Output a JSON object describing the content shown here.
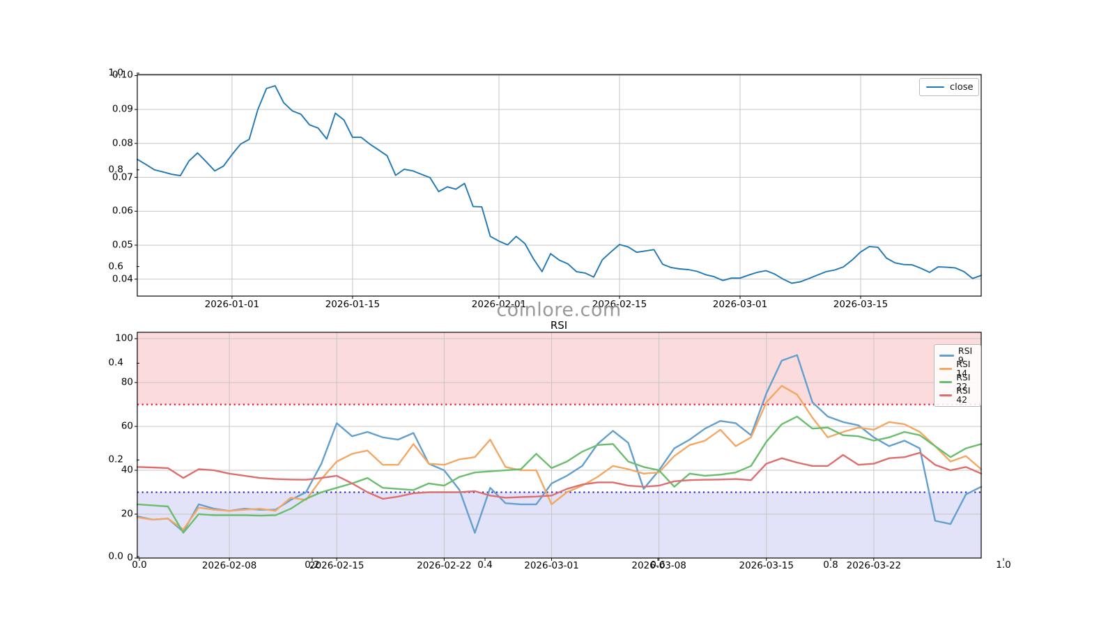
{
  "watermark": "coinlore.com",
  "hidden_axis": {
    "x_labels": [
      "0.0",
      "0.2",
      "0.4",
      "0.6",
      "0.8",
      "1.0"
    ],
    "y_labels": [
      "1.0",
      "0.8",
      "0.6",
      "0.4",
      "0.2",
      "0.0"
    ]
  },
  "chart_data": [
    {
      "type": "line",
      "name": "price-chart",
      "title": "",
      "legend_position": "upper right",
      "grid": true,
      "x_start": "2025-12-21",
      "x_ticks": [
        {
          "label": "2026-01-01",
          "i": 11
        },
        {
          "label": "2026-01-15",
          "i": 25
        },
        {
          "label": "2026-02-01",
          "i": 42
        },
        {
          "label": "2026-02-15",
          "i": 56
        },
        {
          "label": "2026-03-01",
          "i": 70
        },
        {
          "label": "2026-03-15",
          "i": 84
        }
      ],
      "y_ticks": [
        {
          "label": "0.04",
          "v": 0.04
        },
        {
          "label": "0.05",
          "v": 0.05
        },
        {
          "label": "0.06",
          "v": 0.06
        },
        {
          "label": "0.07",
          "v": 0.07
        },
        {
          "label": "0.08",
          "v": 0.08
        },
        {
          "label": "0.09",
          "v": 0.09
        },
        {
          "label": "0.10",
          "v": 0.1
        }
      ],
      "ylim": [
        0.035,
        0.1003
      ],
      "series": [
        {
          "name": "close",
          "color": "#1f77b4",
          "values": [
            0.0753,
            0.0738,
            0.0722,
            0.0716,
            0.0709,
            0.0705,
            0.0748,
            0.0772,
            0.0746,
            0.0719,
            0.0733,
            0.0767,
            0.0798,
            0.0812,
            0.09,
            0.0962,
            0.097,
            0.092,
            0.0896,
            0.0886,
            0.0855,
            0.0845,
            0.0813,
            0.0889,
            0.0869,
            0.0818,
            0.0818,
            0.0798,
            0.0781,
            0.0764,
            0.0706,
            0.0724,
            0.0719,
            0.0709,
            0.0699,
            0.0658,
            0.0672,
            0.0665,
            0.0682,
            0.0614,
            0.0613,
            0.0526,
            0.0512,
            0.0501,
            0.0526,
            0.0505,
            0.046,
            0.0422,
            0.0475,
            0.0456,
            0.0445,
            0.0422,
            0.0418,
            0.0406,
            0.0457,
            0.048,
            0.0502,
            0.0495,
            0.0479,
            0.0483,
            0.0487,
            0.0444,
            0.0434,
            0.043,
            0.0428,
            0.0423,
            0.0413,
            0.0407,
            0.0396,
            0.0403,
            0.0403,
            0.0412,
            0.042,
            0.0425,
            0.0415,
            0.04,
            0.0388,
            0.0392,
            0.0402,
            0.0412,
            0.0422,
            0.0427,
            0.0436,
            0.0456,
            0.048,
            0.0496,
            0.0494,
            0.0462,
            0.0448,
            0.0443,
            0.0442,
            0.0432,
            0.042,
            0.0436,
            0.0435,
            0.0433,
            0.0422,
            0.0402,
            0.0411
          ]
        }
      ]
    },
    {
      "type": "line",
      "name": "rsi-chart",
      "title": "RSI",
      "legend_position": "upper right",
      "grid": true,
      "x_start": "2026-02-02",
      "x_ticks": [
        {
          "label": "2026-02-08",
          "i": 6
        },
        {
          "label": "2026-02-15",
          "i": 13
        },
        {
          "label": "2026-02-22",
          "i": 20
        },
        {
          "label": "2026-03-01",
          "i": 27
        },
        {
          "label": "2026-03-08",
          "i": 34
        },
        {
          "label": "2026-03-15",
          "i": 41
        },
        {
          "label": "2026-03-22",
          "i": 48
        }
      ],
      "y_ticks": [
        {
          "label": "0",
          "v": 0
        },
        {
          "label": "20",
          "v": 20
        },
        {
          "label": "40",
          "v": 40
        },
        {
          "label": "60",
          "v": 60
        },
        {
          "label": "80",
          "v": 80
        },
        {
          "label": "100",
          "v": 100
        }
      ],
      "ylim": [
        0,
        102.9
      ],
      "overbought_level": 70,
      "oversold_level": 30,
      "overbought_fill": "#fbdbdb",
      "oversold_fill": "#e2e2f8",
      "overbought_line_color": "#e01433",
      "oversold_line_color": "#2424cd",
      "series": [
        {
          "name": "RSI 9",
          "color": "#639fce",
          "values": [
            19,
            17.5,
            18,
            12,
            24.5,
            22.5,
            21.5,
            22.5,
            22,
            22,
            26.5,
            30,
            43,
            61.5,
            55.5,
            57.5,
            55,
            54,
            57,
            43,
            40,
            31,
            11.5,
            32,
            25,
            24.5,
            24.5,
            34,
            37.5,
            42,
            52,
            58,
            52.5,
            31.5,
            40,
            50,
            54,
            59,
            62.5,
            61.5,
            56,
            75,
            90,
            92.5,
            71,
            64.5,
            62,
            60.5,
            55,
            51,
            53.5,
            50,
            17,
            15.5,
            29,
            32.5
          ]
        },
        {
          "name": "RSI 14",
          "color": "#f3a763",
          "values": [
            18.5,
            17.5,
            18,
            13,
            23,
            22,
            21.5,
            22,
            22.5,
            21.5,
            27.5,
            26.5,
            36,
            44,
            47.5,
            49,
            42.5,
            42.5,
            52,
            43,
            42.5,
            45,
            46,
            54,
            41.5,
            40,
            40,
            24.5,
            30,
            33,
            37,
            42,
            40.5,
            38.5,
            39,
            46.5,
            51.5,
            53.5,
            58.5,
            51,
            55,
            71,
            78.5,
            74.5,
            64,
            55,
            57.5,
            59.5,
            58.5,
            62,
            61,
            57.5,
            51,
            44,
            46.5,
            40.5
          ]
        },
        {
          "name": "RSI 22",
          "color": "#69bd6d",
          "values": [
            24.5,
            24,
            23.5,
            11.5,
            20,
            19.5,
            19.5,
            19.5,
            19.3,
            19.5,
            22.5,
            27,
            30,
            32,
            34,
            36.5,
            32,
            31.5,
            31,
            34,
            33,
            37,
            39,
            39.5,
            40,
            40.5,
            47.5,
            41,
            44,
            48.5,
            51.5,
            52,
            44,
            41.5,
            40,
            32.5,
            38.5,
            37.5,
            38,
            39,
            42,
            53,
            61,
            64.5,
            59,
            59.5,
            56,
            55.5,
            53.5,
            55,
            57.5,
            56,
            51,
            46,
            50,
            52
          ]
        },
        {
          "name": "RSI 42",
          "color": "#dd6e6e",
          "values": [
            41.5,
            41.3,
            41,
            36.5,
            40.5,
            40,
            38.5,
            37.5,
            36.5,
            36,
            35.8,
            35.7,
            36.5,
            37.5,
            34,
            30,
            27,
            28,
            29.5,
            30,
            30,
            30,
            30.5,
            28.5,
            27.5,
            27.8,
            28,
            28.5,
            31.5,
            33.5,
            34.5,
            34.5,
            33,
            32.5,
            33,
            35,
            35.5,
            35.7,
            35.8,
            36,
            35.5,
            43,
            45.5,
            43.5,
            42,
            42,
            47,
            42.5,
            43,
            45.5,
            46,
            48,
            42.5,
            40,
            41.5,
            38.5
          ]
        }
      ]
    }
  ]
}
